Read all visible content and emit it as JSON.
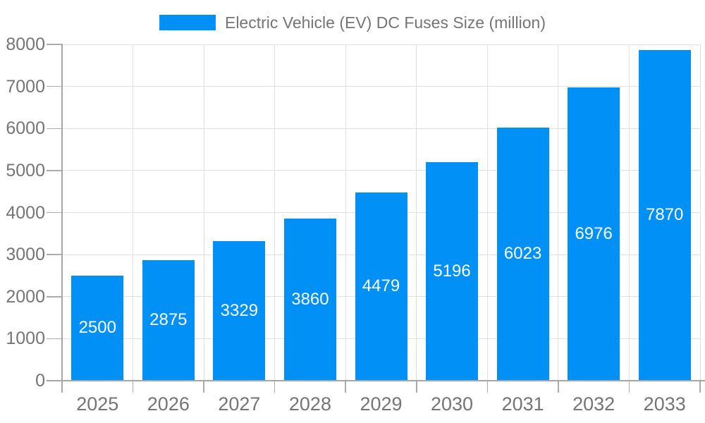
{
  "chart_data": {
    "type": "bar",
    "title": "",
    "legend_label": "Electric Vehicle (EV) DC Fuses Size (million)",
    "legend_position": "top",
    "categories": [
      "2025",
      "2026",
      "2027",
      "2028",
      "2029",
      "2030",
      "2031",
      "2032",
      "2033"
    ],
    "values": [
      2500,
      2875,
      3329,
      3860,
      4479,
      5196,
      6023,
      6976,
      7870
    ],
    "bar_value_labels": [
      "2500",
      "2875",
      "3329",
      "3860",
      "4479",
      "5196",
      "6023",
      "6976",
      "7870"
    ],
    "xlabel": "",
    "ylabel": "",
    "ylim": [
      0,
      8000
    ],
    "ytick_step": 1000,
    "ytick_labels": [
      "0",
      "1000",
      "2000",
      "3000",
      "4000",
      "5000",
      "6000",
      "7000",
      "8000"
    ],
    "grid": true,
    "colors": {
      "bar": "#0090F6",
      "bar_label": "#FFFFFF",
      "axis_label": "#757575",
      "legend_text": "#757575",
      "gridline": "#E0E0E0",
      "axis_line": "#A6A6A6",
      "tick": "#ABABAB",
      "background": "#FFFFFF"
    }
  }
}
